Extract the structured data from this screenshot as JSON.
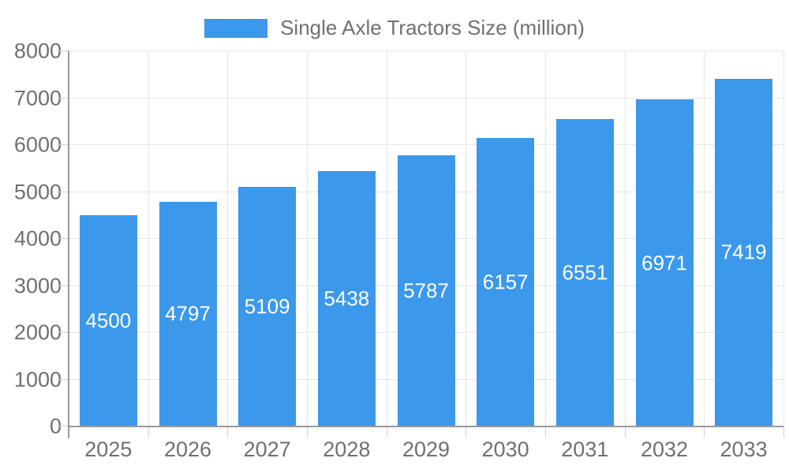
{
  "chart_data": {
    "type": "bar",
    "legend_label": "Single Axle Tractors Size (million)",
    "legend_position": "top",
    "categories": [
      "2025",
      "2026",
      "2027",
      "2028",
      "2029",
      "2030",
      "2031",
      "2032",
      "2033"
    ],
    "values": [
      4500,
      4797,
      5109,
      5438,
      5787,
      6157,
      6551,
      6971,
      7419
    ],
    "value_labels_shown": true,
    "xlabel": "",
    "ylabel": "",
    "ylim": [
      0,
      8000
    ],
    "y_ticks": [
      0,
      1000,
      2000,
      3000,
      4000,
      5000,
      6000,
      7000,
      8000
    ],
    "grid": true,
    "colors": {
      "bar": "#3B98EB",
      "grid": "#E5E5E5",
      "tick": "#CFCFCF",
      "axis": "#9A9A9A",
      "label": "#707070",
      "value_label": "#FFFFFF",
      "background": "#FFFFFF"
    }
  }
}
